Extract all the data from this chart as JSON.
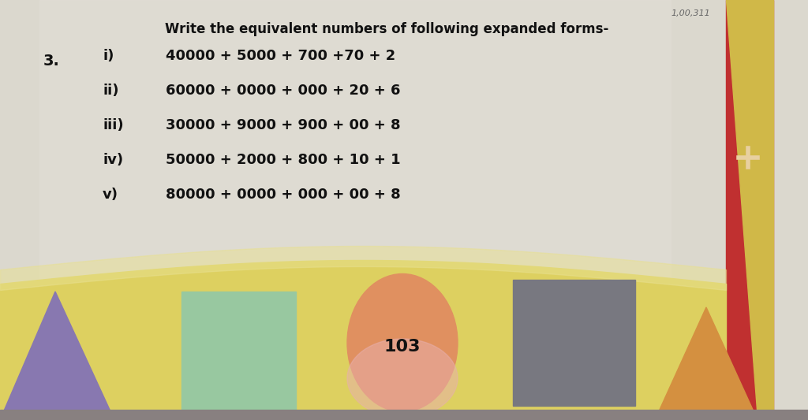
{
  "page_color": "#dbd8ce",
  "white_area_color": "#e8e6df",
  "title": "Write the equivalent numbers of following expanded forms-",
  "question_num": "3.",
  "items": [
    {
      "label": "i)",
      "text": "40000 + 5000 + 700 +70 + 2"
    },
    {
      "label": "ii)",
      "text": "60000 + 0000 + 000 + 20 + 6"
    },
    {
      "label": "iii)",
      "text": "30000 + 9000 + 900 + 00 + 8"
    },
    {
      "label": "iv)",
      "text": "50000 + 2000 + 800 + 10 + 1"
    },
    {
      "label": "v)",
      "text": "80000 + 0000 + 000 + 00 + 8"
    }
  ],
  "text_color": "#111111",
  "yellow_band_color": "#ddd060",
  "yellow_band_light": "#e8e090",
  "triangle_left_color": "#8878b0",
  "green_rect_color": "#98c8a0",
  "orange_ellipse_color": "#e09060",
  "gray_rect_color": "#7878888",
  "orange_tri_color": "#d49040",
  "page_number": "103",
  "right_strip_color": "#c03030",
  "right_strip2_color": "#d0b848"
}
